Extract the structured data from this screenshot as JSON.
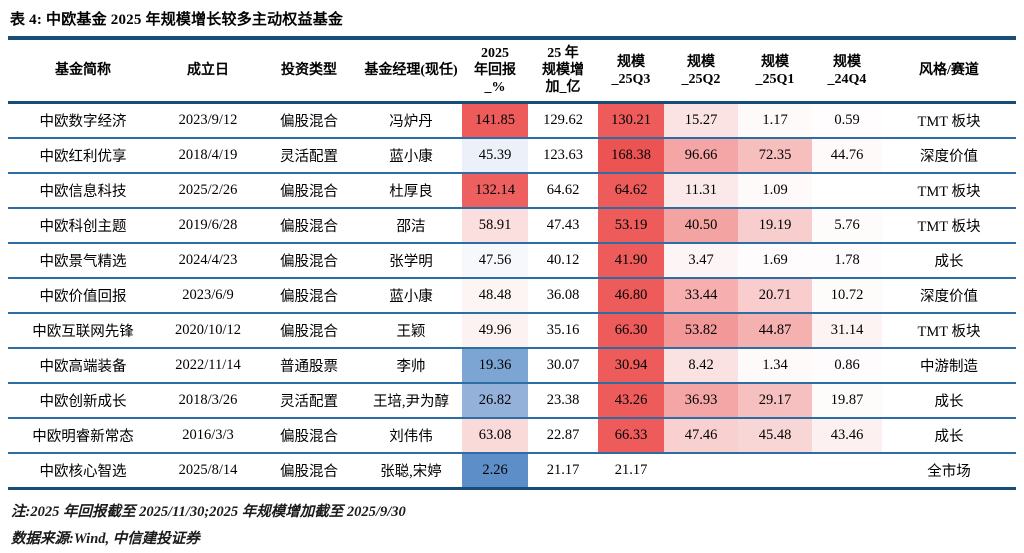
{
  "title": "表 4: 中欧基金 2025 年规模增长较多主动权益基金",
  "colors": {
    "border_heavy": "#174e79",
    "border_light": "#2c6da5",
    "heat_red_max": "#ed5b5b",
    "heat_blue_max": "#5d8ec8"
  },
  "table": {
    "headers": [
      "基金简称",
      "成立日",
      "投资类型",
      "基金经理(现任)",
      "2025\n年回报\n_%",
      "25 年\n规模增\n加_亿",
      "规模\n_25Q3",
      "规模\n_25Q2",
      "规模\n_25Q1",
      "规模\n_24Q4",
      "风格/赛道"
    ],
    "rows": [
      {
        "cells": [
          {
            "v": "中欧数字经济"
          },
          {
            "v": "2023/9/12"
          },
          {
            "v": "偏股混合"
          },
          {
            "v": "冯炉丹"
          },
          {
            "v": "141.85",
            "bg": "#ed5b5b"
          },
          {
            "v": "129.62"
          },
          {
            "v": "130.21",
            "bg": "#ed5b5b"
          },
          {
            "v": "15.27",
            "bg": "#fbe3e3"
          },
          {
            "v": "1.17",
            "bg": "#fefafa"
          },
          {
            "v": "0.59",
            "bg": "#fffdfd"
          },
          {
            "v": "TMT 板块"
          }
        ]
      },
      {
        "cells": [
          {
            "v": "中欧红利优享"
          },
          {
            "v": "2018/4/19"
          },
          {
            "v": "灵活配置"
          },
          {
            "v": "蓝小康"
          },
          {
            "v": "45.39",
            "bg": "#ecf1f9"
          },
          {
            "v": "123.63"
          },
          {
            "v": "168.38",
            "bg": "#ec5454"
          },
          {
            "v": "96.66",
            "bg": "#f4a5a5"
          },
          {
            "v": "72.35",
            "bg": "#f7bebe"
          },
          {
            "v": "44.76",
            "bg": "#fefafa"
          },
          {
            "v": "深度价值"
          }
        ]
      },
      {
        "cells": [
          {
            "v": "中欧信息科技"
          },
          {
            "v": "2025/2/26"
          },
          {
            "v": "偏股混合"
          },
          {
            "v": "杜厚良"
          },
          {
            "v": "132.14",
            "bg": "#ee6060"
          },
          {
            "v": "64.62"
          },
          {
            "v": "64.62",
            "bg": "#ed5b5b"
          },
          {
            "v": "11.31",
            "bg": "#fbe8e8"
          },
          {
            "v": "1.09",
            "bg": "#fefafa"
          },
          {
            "v": ""
          },
          {
            "v": "TMT 板块"
          }
        ]
      },
      {
        "cells": [
          {
            "v": "中欧科创主题"
          },
          {
            "v": "2019/6/28"
          },
          {
            "v": "偏股混合"
          },
          {
            "v": "邵洁"
          },
          {
            "v": "58.91",
            "bg": "#fbdede"
          },
          {
            "v": "47.43"
          },
          {
            "v": "53.19",
            "bg": "#ed5b5b"
          },
          {
            "v": "40.50",
            "bg": "#f4a3a3"
          },
          {
            "v": "19.19",
            "bg": "#f8cdcd"
          },
          {
            "v": "5.76",
            "bg": "#fefbfb"
          },
          {
            "v": "TMT 板块"
          }
        ]
      },
      {
        "cells": [
          {
            "v": "中欧景气精选"
          },
          {
            "v": "2024/4/23"
          },
          {
            "v": "偏股混合"
          },
          {
            "v": "张学明"
          },
          {
            "v": "47.56",
            "bg": "#f6f8fc"
          },
          {
            "v": "40.12"
          },
          {
            "v": "41.90",
            "bg": "#ed5b5b"
          },
          {
            "v": "3.47",
            "bg": "#fdf5f5"
          },
          {
            "v": "1.69",
            "bg": "#fefcfc"
          },
          {
            "v": "1.78",
            "bg": "#fefcfc"
          },
          {
            "v": "成长"
          }
        ]
      },
      {
        "cells": [
          {
            "v": "中欧价值回报"
          },
          {
            "v": "2023/6/9"
          },
          {
            "v": "偏股混合"
          },
          {
            "v": "蓝小康"
          },
          {
            "v": "48.48",
            "bg": "#fdf4f4"
          },
          {
            "v": "36.08"
          },
          {
            "v": "46.80",
            "bg": "#ed5b5b"
          },
          {
            "v": "33.44",
            "bg": "#f6aeae"
          },
          {
            "v": "20.71",
            "bg": "#f9cdcd"
          },
          {
            "v": "10.72",
            "bg": "#fefbfb"
          },
          {
            "v": "深度价值"
          }
        ]
      },
      {
        "cells": [
          {
            "v": "中欧互联网先锋"
          },
          {
            "v": "2020/10/12"
          },
          {
            "v": "偏股混合"
          },
          {
            "v": "王颖"
          },
          {
            "v": "49.96",
            "bg": "#fdf2f2"
          },
          {
            "v": "35.16"
          },
          {
            "v": "66.30",
            "bg": "#ed5b5b"
          },
          {
            "v": "53.82",
            "bg": "#f29898"
          },
          {
            "v": "44.87",
            "bg": "#f5b0b0"
          },
          {
            "v": "31.14",
            "bg": "#fdf3f3"
          },
          {
            "v": "TMT 板块"
          }
        ]
      },
      {
        "cells": [
          {
            "v": "中欧高端装备"
          },
          {
            "v": "2022/11/14"
          },
          {
            "v": "普通股票"
          },
          {
            "v": "李帅"
          },
          {
            "v": "19.36",
            "bg": "#7da5d3"
          },
          {
            "v": "30.07"
          },
          {
            "v": "30.94",
            "bg": "#ed5b5b"
          },
          {
            "v": "8.42",
            "bg": "#fbe2e2"
          },
          {
            "v": "1.34",
            "bg": "#fefafa"
          },
          {
            "v": "0.86",
            "bg": "#fefcfc"
          },
          {
            "v": "中游制造"
          }
        ]
      },
      {
        "cells": [
          {
            "v": "中欧创新成长"
          },
          {
            "v": "2018/3/26"
          },
          {
            "v": "灵活配置"
          },
          {
            "v": "王培,尹为醇"
          },
          {
            "v": "26.82",
            "bg": "#94b2d9"
          },
          {
            "v": "23.38"
          },
          {
            "v": "43.26",
            "bg": "#ed5b5b"
          },
          {
            "v": "36.93",
            "bg": "#f4a6a6"
          },
          {
            "v": "29.17",
            "bg": "#f7c0c0"
          },
          {
            "v": "19.87",
            "bg": "#fefbfb"
          },
          {
            "v": "成长"
          }
        ]
      },
      {
        "cells": [
          {
            "v": "中欧明睿新常态"
          },
          {
            "v": "2016/3/3"
          },
          {
            "v": "偏股混合"
          },
          {
            "v": "刘伟伟"
          },
          {
            "v": "63.08",
            "bg": "#fad9d9"
          },
          {
            "v": "22.87"
          },
          {
            "v": "66.33",
            "bg": "#ed5b5b"
          },
          {
            "v": "47.46",
            "bg": "#f9d0d0"
          },
          {
            "v": "45.48",
            "bg": "#f9d6d6"
          },
          {
            "v": "43.46",
            "bg": "#fdf0f0"
          },
          {
            "v": "成长"
          }
        ]
      },
      {
        "cells": [
          {
            "v": "中欧核心智选"
          },
          {
            "v": "2025/8/14"
          },
          {
            "v": "偏股混合"
          },
          {
            "v": "张聪,宋婷"
          },
          {
            "v": "2.26",
            "bg": "#5d8ec8"
          },
          {
            "v": "21.17"
          },
          {
            "v": "21.17"
          },
          {
            "v": ""
          },
          {
            "v": ""
          },
          {
            "v": ""
          },
          {
            "v": "全市场"
          }
        ]
      }
    ]
  },
  "notes": {
    "note_line": "注:2025 年回报截至 2025/11/30;2025 年规模增加截至 2025/9/30",
    "source_line": "数据来源:Wind, 中信建投证券"
  }
}
